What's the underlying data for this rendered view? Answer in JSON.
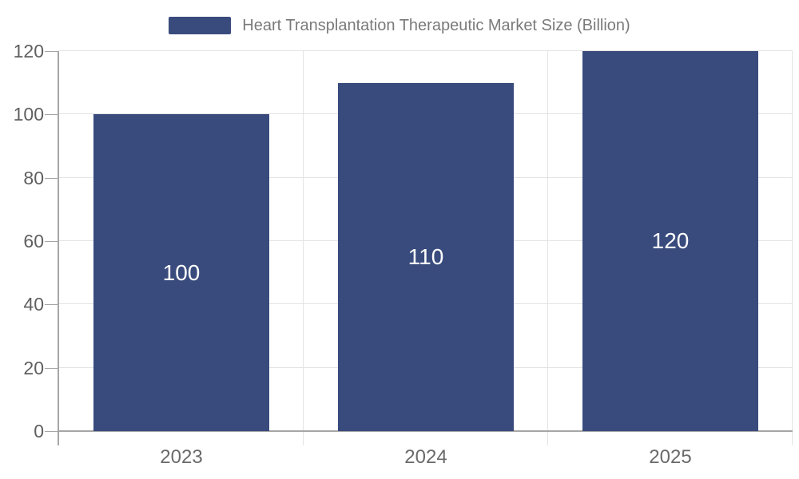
{
  "chart_data": {
    "type": "bar",
    "title": "Heart Transplantation Therapeutic Market Size (Billion)",
    "categories": [
      "2023",
      "2024",
      "2025"
    ],
    "series": [
      {
        "name": "Heart Transplantation Therapeutic Market Size (Billion)",
        "values": [
          100,
          110,
          120
        ]
      }
    ],
    "data_labels": [
      "100",
      "110",
      "120"
    ],
    "xlabel": "",
    "ylabel": "",
    "ylim": [
      0,
      120
    ],
    "yticks": [
      0,
      20,
      40,
      60,
      80,
      100,
      120
    ],
    "grid": true,
    "legend_position": "top"
  },
  "legend": {
    "label": "Heart Transplantation Therapeutic Market Size (Billion)"
  },
  "colors": {
    "bar": "#394B7D",
    "grid": "#e3e3e3",
    "axis": "#a6a6a6",
    "y_tick_text": "#5f5f5f",
    "x_tick_text": "#6a6a6a",
    "legend_text": "#7a7a7a",
    "bar_label_text": "#ffffff",
    "background": "#ffffff"
  }
}
